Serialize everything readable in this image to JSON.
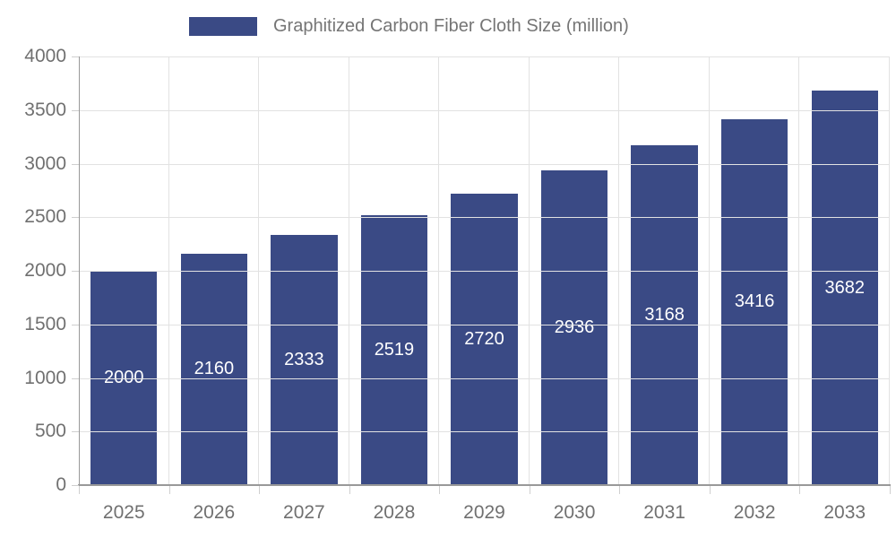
{
  "chart_data": {
    "type": "bar",
    "title": "",
    "legend": {
      "label": "Graphitized Carbon Fiber Cloth Size (million)",
      "position": "top"
    },
    "categories": [
      "2025",
      "2026",
      "2027",
      "2028",
      "2029",
      "2030",
      "2031",
      "2032",
      "2033"
    ],
    "series": [
      {
        "name": "Graphitized Carbon Fiber Cloth Size (million)",
        "values": [
          2000,
          2160,
          2333,
          2519,
          2720,
          2936,
          3168,
          3416,
          3682
        ]
      }
    ],
    "xlabel": "",
    "ylabel": "",
    "ylim": [
      0,
      4000
    ],
    "ytick_step": 500,
    "ytick_values": [
      0,
      500,
      1000,
      1500,
      2000,
      2500,
      3000,
      3500,
      4000
    ],
    "grid": true,
    "value_labels": "inside-center",
    "colors": {
      "bar": "#3A4A85",
      "grid": "#E2E2E2",
      "axis": "#999999",
      "tick": "#CFCFCF",
      "ticklabel": "#707070",
      "legendtext": "#757575",
      "valuelabel": "#FFFFFF"
    }
  }
}
